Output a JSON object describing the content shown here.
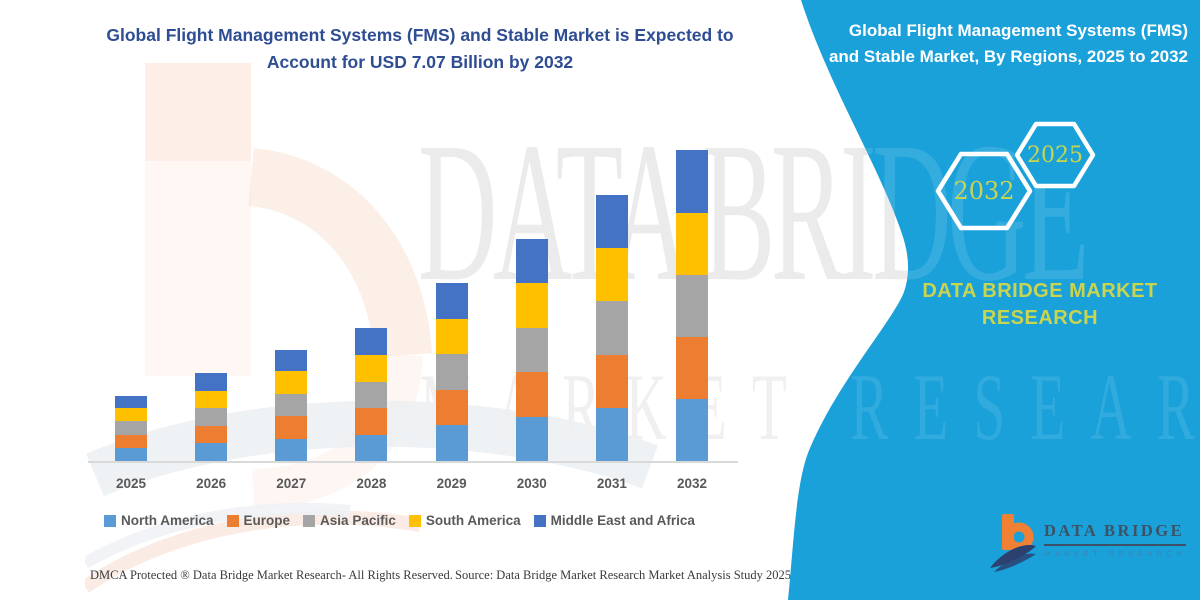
{
  "page": {
    "background": "#ffffff",
    "accent_cyan": "#1aa1da",
    "title_color": "#2e4d92"
  },
  "header": {
    "title": "Global Flight Management Systems (FMS) and Stable Market is Expected to Account for USD 7.07 Billion by 2032"
  },
  "chart_data": {
    "type": "bar",
    "stacked": true,
    "title": "Global Flight Management Systems (FMS) and Stable Market, By Regions, 2025 to 2032",
    "unit": "USD Billion",
    "categories": [
      "2025",
      "2026",
      "2027",
      "2028",
      "2029",
      "2030",
      "2031",
      "2032"
    ],
    "series": [
      {
        "name": "North America",
        "color": "#5B9BD5",
        "values": [
          0.3,
          0.4,
          0.51,
          0.6,
          0.81,
          1.01,
          1.21,
          1.41
        ]
      },
      {
        "name": "Europe",
        "color": "#ED7D31",
        "values": [
          0.3,
          0.4,
          0.51,
          0.6,
          0.81,
          1.01,
          1.21,
          1.41
        ]
      },
      {
        "name": "Asia Pacific",
        "color": "#A5A5A5",
        "values": [
          0.3,
          0.4,
          0.51,
          0.6,
          0.81,
          1.01,
          1.21,
          1.41
        ]
      },
      {
        "name": "South America",
        "color": "#FFC000",
        "values": [
          0.3,
          0.4,
          0.51,
          0.6,
          0.81,
          1.01,
          1.21,
          1.41
        ]
      },
      {
        "name": "Middle East and Africa",
        "color": "#4472C4",
        "values": [
          0.28,
          0.39,
          0.49,
          0.62,
          0.8,
          1.0,
          1.21,
          1.43
        ]
      }
    ],
    "totals_usd_billion": [
      1.48,
      1.99,
      2.53,
      3.02,
      4.04,
      5.04,
      6.05,
      7.07
    ],
    "highlight_value": "USD 7.07 Billion by 2032",
    "xlabel": "",
    "ylabel": "",
    "ylim": [
      0,
      7.07
    ],
    "grid": false,
    "legend_position": "bottom"
  },
  "side_panel": {
    "title": "Global Flight Management Systems (FMS) and Stable Market, By Regions, 2025 to 2032",
    "hexagons": [
      {
        "label": "2032"
      },
      {
        "label": "2025"
      }
    ],
    "brand_text": "DATA BRIDGE MARKET RESEARCH",
    "brand_color": "#c9d44f",
    "logo": {
      "name": "DATA BRIDGE",
      "subtitle": "MARKET RESEARCH"
    }
  },
  "watermark": {
    "line1": "DATA BRIDGE",
    "line2": "MARKET RESEARCH"
  },
  "footer": {
    "dmca": "DMCA Protected ® Data Bridge Market Research-  All Rights Reserved.",
    "source": "Source: Data Bridge Market Research  Market Analysis Study 2025"
  }
}
